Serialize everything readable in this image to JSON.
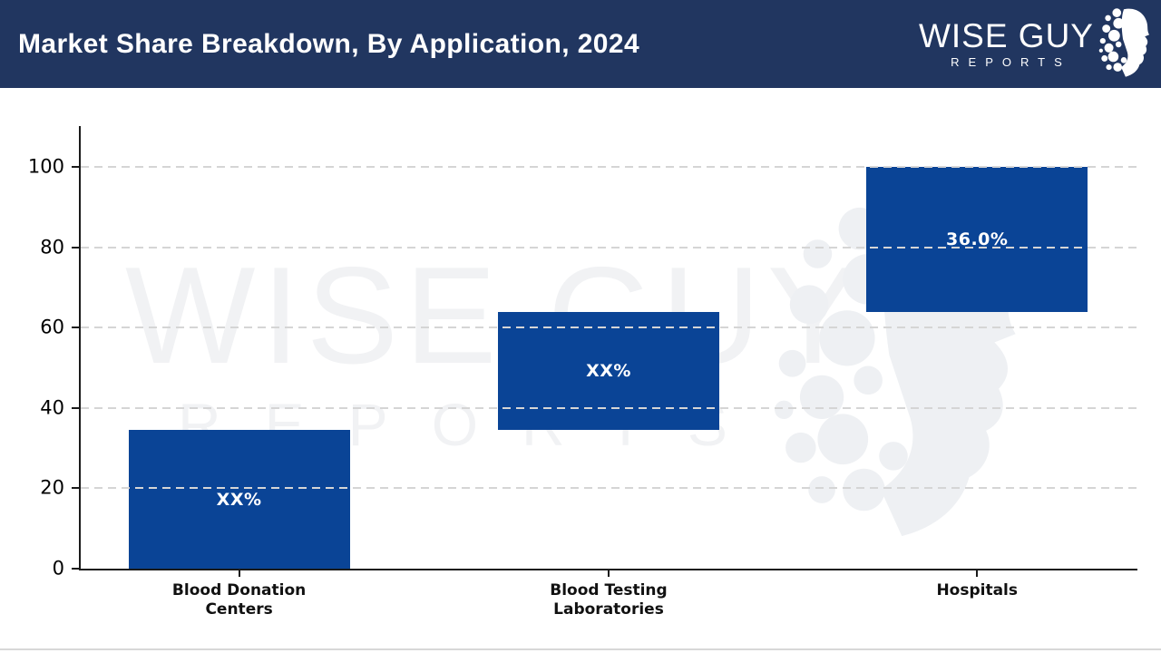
{
  "header": {
    "title": "Market Share Breakdown, By Application, 2024",
    "bg_color": "#213660",
    "logo": {
      "primary": "WISE GUY",
      "secondary": "REPORTS",
      "face_icon": "dotted-face-profile"
    }
  },
  "watermark": {
    "primary": "WISE GUY",
    "secondary": "REPORTS"
  },
  "chart_data": {
    "type": "bar",
    "variant": "floating-waterfall",
    "title": "Market Share Breakdown, By Application, 2024",
    "categories": [
      "Blood Donation Centers",
      "Blood Testing Laboratories",
      "Hospitals"
    ],
    "category_lines": [
      [
        "Blood Donation",
        "Centers"
      ],
      [
        "Blood Testing",
        "Laboratories"
      ],
      [
        "Hospitals"
      ]
    ],
    "segments": [
      {
        "category": "Blood Donation Centers",
        "start": 0,
        "end": 34.5,
        "label": "XX%"
      },
      {
        "category": "Blood Testing Laboratories",
        "start": 34.5,
        "end": 64,
        "label": "XX%"
      },
      {
        "category": "Hospitals",
        "start": 64,
        "end": 100,
        "label": "36.0%"
      }
    ],
    "bar_labels": [
      "XX%",
      "XX%",
      "36.0%"
    ],
    "bar_color": "#0a4496",
    "label_color": "#ffffff",
    "yticks": [
      0,
      20,
      40,
      60,
      80,
      100
    ],
    "ylim": [
      0,
      110
    ],
    "xlabel": "",
    "ylabel": "",
    "legend": "none",
    "grid": {
      "axis": "y",
      "style": "dashed",
      "color": "#d6d6d6",
      "drawn_over_bars": true
    }
  },
  "footer": {
    "border_color": "#d8d8d8"
  }
}
